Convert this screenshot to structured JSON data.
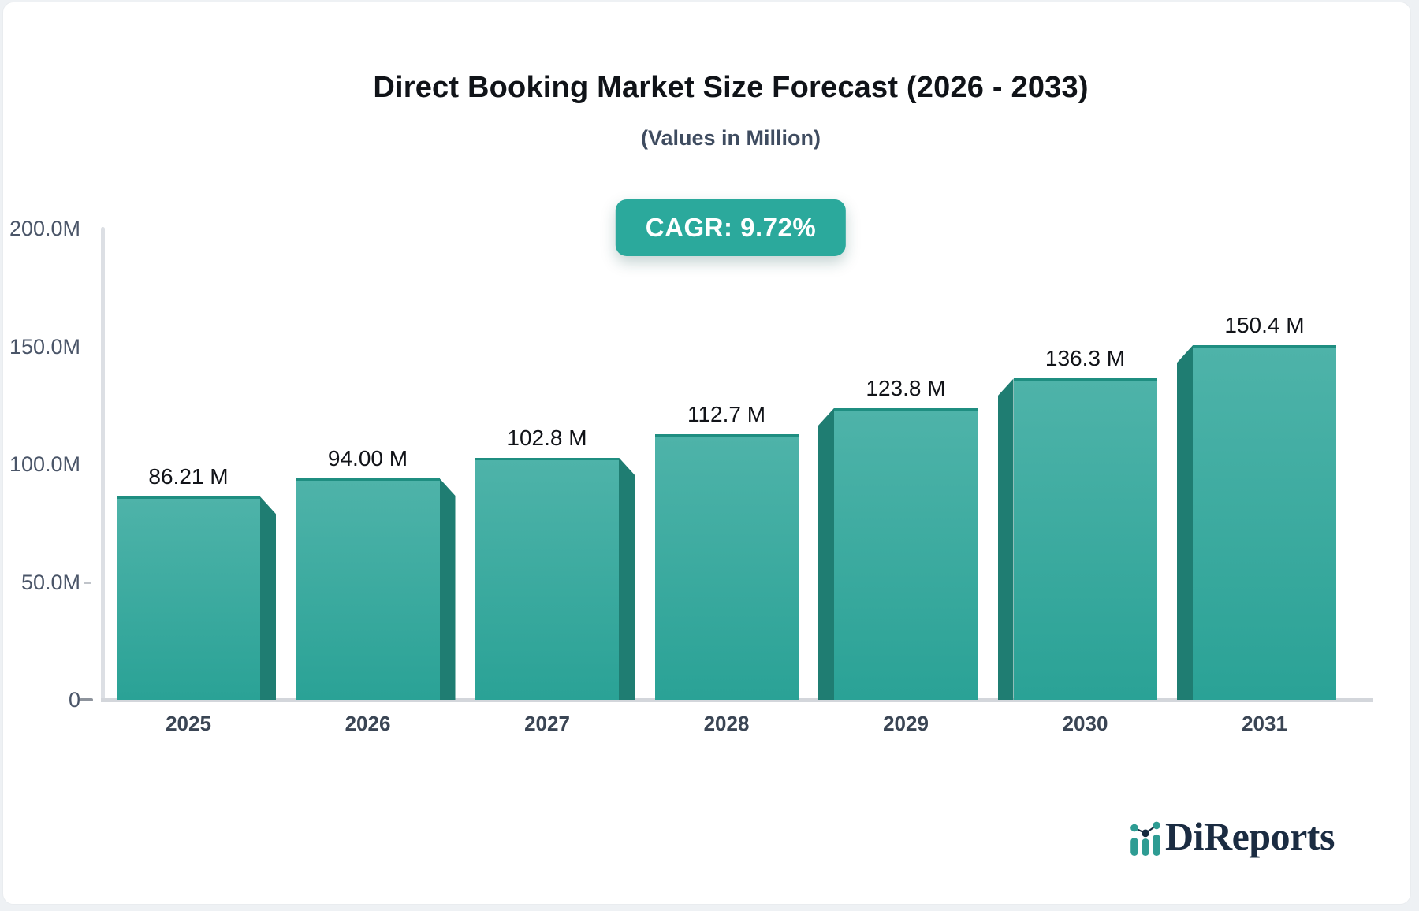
{
  "chart_data": {
    "type": "bar",
    "title": "Direct Booking Market Size Forecast (2026 - 2033)",
    "subtitle": "(Values in Million)",
    "badge_label": "CAGR: 9.72%",
    "categories": [
      "2025",
      "2026",
      "2027",
      "2028",
      "2029",
      "2030",
      "2031"
    ],
    "values": [
      86.21,
      94.0,
      102.8,
      112.7,
      123.8,
      136.3,
      150.4
    ],
    "value_labels": [
      "86.21 M",
      "94.00 M",
      "102.8 M",
      "112.7 M",
      "123.8 M",
      "136.3 M",
      "150.4 M"
    ],
    "unit": "Million",
    "xlabel": "",
    "ylabel": "",
    "ylim": [
      0,
      200
    ],
    "yticks": [
      {
        "label": "200.0M",
        "value": 200,
        "tick": "none"
      },
      {
        "label": "150.0M",
        "value": 150,
        "tick": "none"
      },
      {
        "label": "100.0M",
        "value": 100,
        "tick": "none"
      },
      {
        "label": "50.0M",
        "value": 50,
        "tick": "short"
      },
      {
        "label": "0",
        "value": 0,
        "tick": "long"
      }
    ],
    "grid": false,
    "legend": "none",
    "bar_color_top": "#4eb3a9",
    "bar_color_bottom": "#2aa296",
    "bar_top_rim": "#1f8e81",
    "bar_side_color": "#1f7d72",
    "accent": "#2ba99c"
  },
  "watermark": {
    "text": "DiReports",
    "icon": "direports-bars-icon",
    "text_color": "#1b2c42",
    "icon_teal": "#2e9c93",
    "icon_navy": "#152a3e"
  }
}
